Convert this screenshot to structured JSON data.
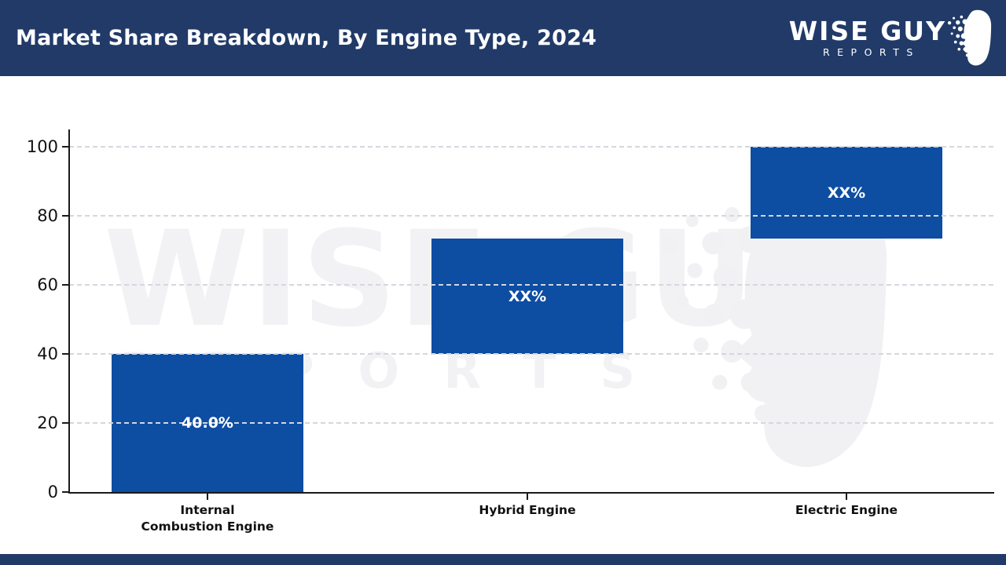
{
  "header": {
    "title": "Market Share Breakdown, By Engine Type, 2024",
    "logo_line1": "WISE GUY",
    "logo_line2": "REPORTS"
  },
  "watermark": {
    "line1": "WISE GUY",
    "line2": "REPORTS"
  },
  "colors": {
    "header_bg": "#213a68",
    "footer_bg": "#213a68",
    "bar": "#0d4da2",
    "grid": "#d3d7de",
    "axis": "#1a1a1a",
    "watermark": "#f2f2f5",
    "bar_label": "#ffffff",
    "title_text": "#ffffff",
    "tick_text": "#111111"
  },
  "chart_data": {
    "type": "bar",
    "subtype": "waterfall",
    "title": "Market Share Breakdown, By Engine Type, 2024",
    "categories": [
      "Internal\nCombustion Engine",
      "Hybrid Engine",
      "Electric Engine"
    ],
    "bars": [
      {
        "category": "Internal Combustion Engine",
        "start": 0,
        "end": 40,
        "label": "40.0%"
      },
      {
        "category": "Hybrid Engine",
        "start": 40,
        "end": 73.3,
        "label": "XX%"
      },
      {
        "category": "Electric Engine",
        "start": 73.3,
        "end": 100,
        "label": "XX%"
      }
    ],
    "xlabel": "",
    "ylabel": "",
    "ylim": [
      0,
      105
    ],
    "yticks": [
      0,
      20,
      40,
      60,
      80,
      100
    ],
    "grid": "horizontal-dashed",
    "legend": "none",
    "bar_color": "#0d4da2"
  }
}
